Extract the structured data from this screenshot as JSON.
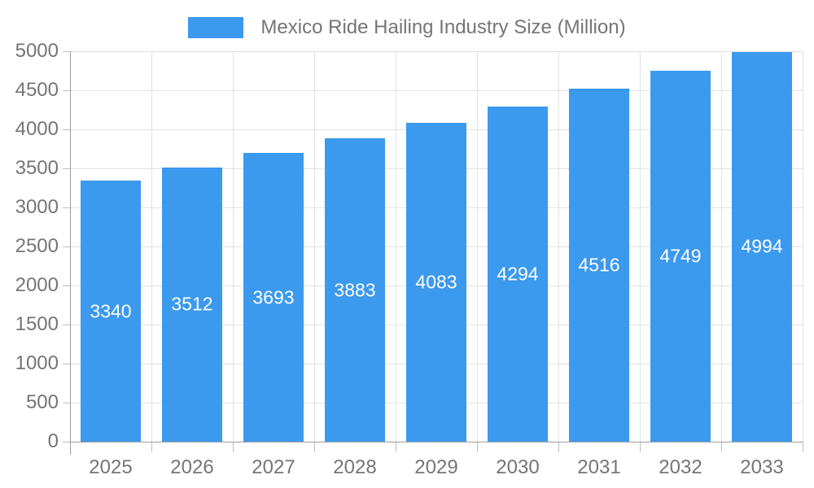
{
  "legend": {
    "label": "Mexico Ride Hailing Industry Size (Million)"
  },
  "chart_data": {
    "type": "bar",
    "title": "Mexico Ride Hailing Industry Size (Million)",
    "categories": [
      "2025",
      "2026",
      "2027",
      "2028",
      "2029",
      "2030",
      "2031",
      "2032",
      "2033"
    ],
    "values": [
      3340,
      3512,
      3693,
      3883,
      4083,
      4294,
      4516,
      4749,
      4994
    ],
    "value_labels": [
      "3340",
      "3512",
      "3693",
      "3883",
      "4083",
      "4294",
      "4516",
      "4749",
      "4994"
    ],
    "xlabel": "",
    "ylabel": "",
    "ylim": [
      0,
      5000
    ],
    "yticks": [
      0,
      500,
      1000,
      1500,
      2000,
      2500,
      3000,
      3500,
      4000,
      4500,
      5000
    ],
    "grid": true,
    "legend_position": "top-center",
    "value_label_position": "bar-center"
  },
  "colors": {
    "bar": "#3B99EE",
    "value_label": "#ffffff",
    "grid": "#e2e2e2",
    "axis": "#9e9e9e",
    "tick": "#bdbdbd",
    "text": "#757575",
    "background": "#ffffff"
  }
}
